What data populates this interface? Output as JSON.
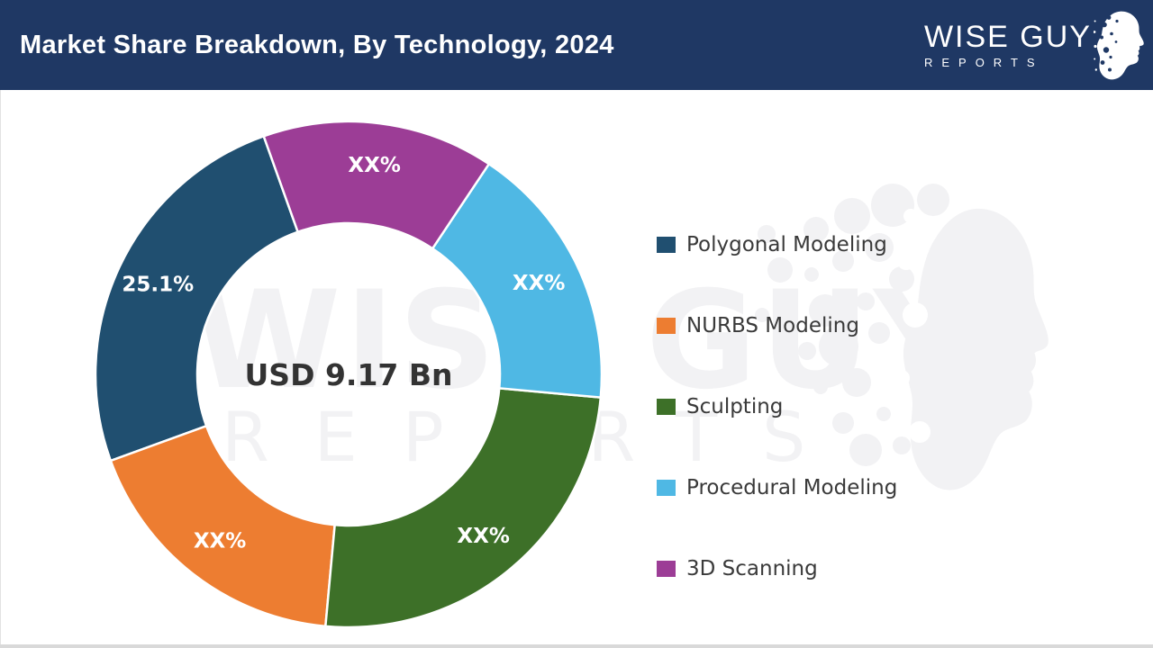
{
  "header": {
    "title": "Market Share Breakdown, By Technology, 2024",
    "bg_color": "#1F3864",
    "logo": {
      "name": "WISE GUY",
      "sub": "REPORTS"
    }
  },
  "chart_data": {
    "type": "donut",
    "title": "Market Share Breakdown, By Technology, 2024",
    "center_label": "USD 9.17 Bn",
    "start_angle_deg": 109.6,
    "direction": "counterclockwise",
    "outer_radius_px": 281,
    "inner_radius_px": 168,
    "label_radius_px": 234,
    "segments": [
      {
        "name": "Polygonal Modeling",
        "value_pct": 25.1,
        "display_label": "25.1%",
        "color": "#204F70"
      },
      {
        "name": "NURBS Modeling",
        "value_pct": 18.0,
        "display_label": "XX%",
        "color": "#ED7D31"
      },
      {
        "name": "Sculpting",
        "value_pct": 25.0,
        "display_label": "XX%",
        "color": "#3D7028"
      },
      {
        "name": "Procedural Modeling",
        "value_pct": 17.1,
        "display_label": "XX%",
        "color": "#4FB8E4"
      },
      {
        "name": "3D Scanning",
        "value_pct": 14.8,
        "display_label": "XX%",
        "color": "#9C3D96"
      }
    ],
    "legend_position": "right",
    "slice_label_color": "#FFFFFF"
  },
  "watermark": {
    "line1": "WISE GUY",
    "line2": "REPORTS",
    "color": "#F2F2F4"
  },
  "colors": {
    "header_bg": "#1F3864",
    "bottom_bar": "#D9D9D9",
    "center_text": "#333333",
    "legend_text": "#3A3A3A"
  }
}
